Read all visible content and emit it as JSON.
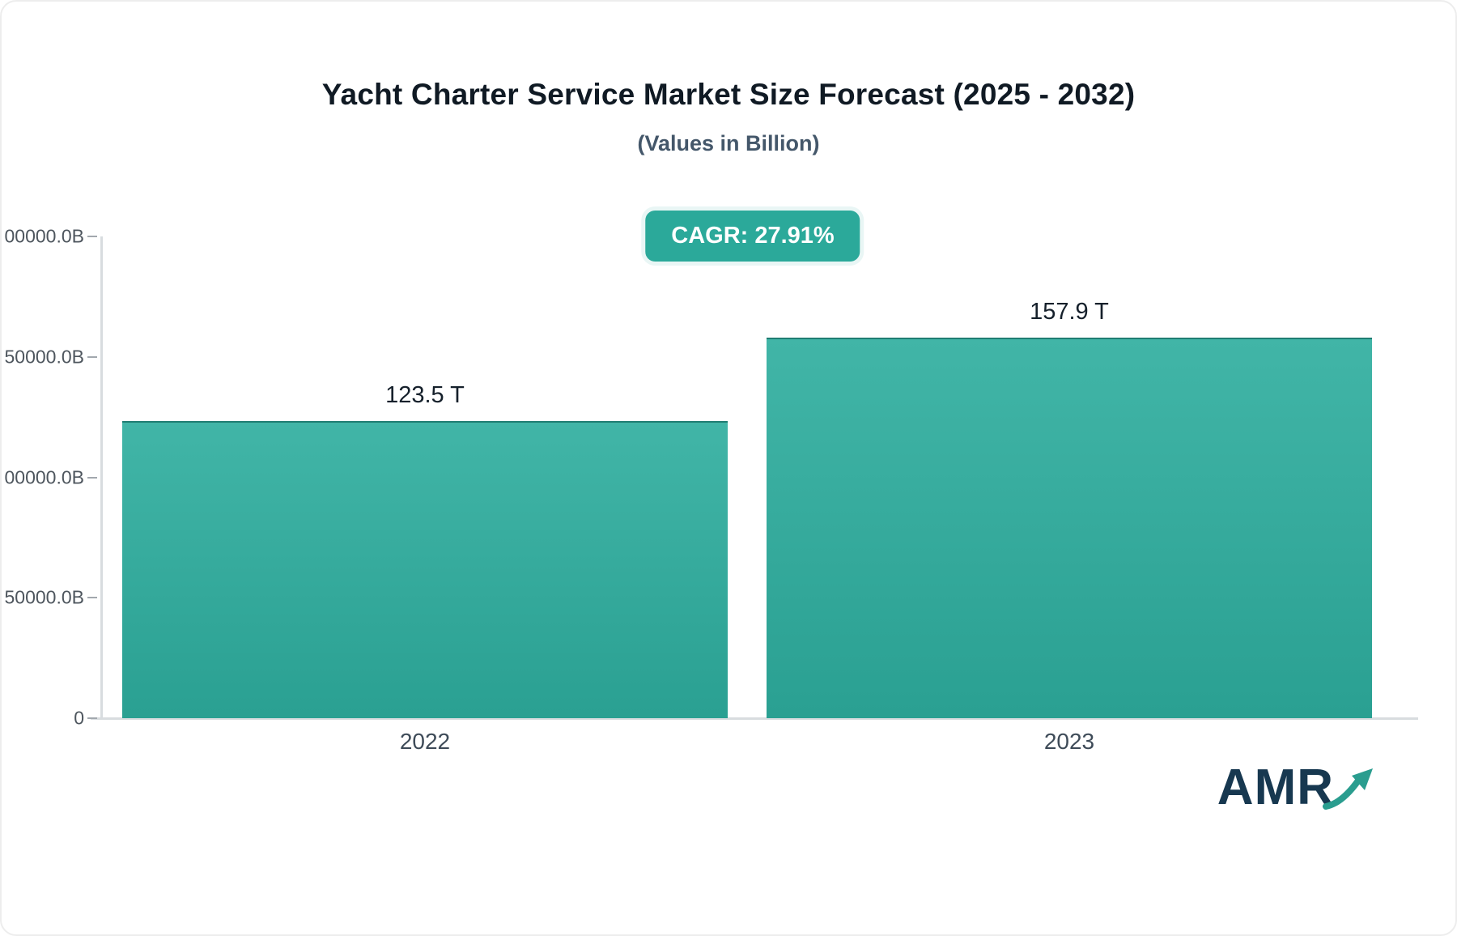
{
  "chart_data": {
    "type": "bar",
    "title": "Yacht Charter Service Market Size Forecast (2025 - 2032)",
    "subtitle": "(Values in Billion)",
    "badge": "CAGR: 27.91%",
    "categories": [
      "2022",
      "2023"
    ],
    "values_billion": [
      123500,
      157900
    ],
    "value_labels": [
      "123.5 T",
      "157.9 T"
    ],
    "xlabel": "",
    "ylabel": "",
    "ylim": [
      0,
      200000
    ],
    "ytick_values": [
      200000,
      150000,
      100000,
      50000,
      0
    ],
    "ytick_labels_visible": [
      "00000.0B",
      "50000.0B",
      "00000.0B",
      "50000.0B",
      "0"
    ],
    "grid": false,
    "legend": "none"
  },
  "branding": {
    "logo_text": "AMR"
  },
  "colors": {
    "bar_top": "#41b5a7",
    "bar_bottom": "#2aa092",
    "badge_bg": "#2ba99a",
    "badge_text": "#ffffff",
    "axis_line": "#d8dcdf",
    "tick_text": "#4e565e",
    "title_text": "#101a24",
    "subtitle_text": "#44576a",
    "logo_text": "#173850",
    "logo_arrow": "#2a9d8f"
  }
}
